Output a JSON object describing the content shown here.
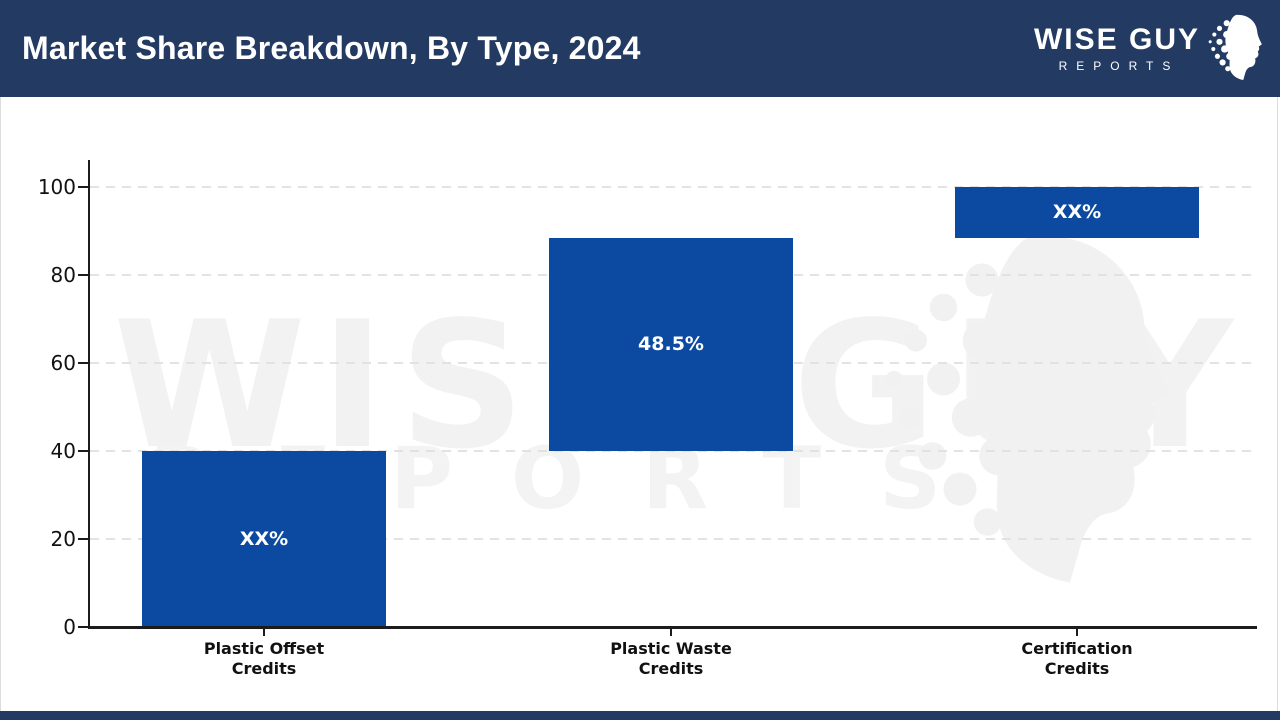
{
  "header": {
    "title": "Market Share Breakdown, By Type, 2024",
    "logo": {
      "line1": "WISE GUY",
      "line2": "REPORTS"
    }
  },
  "watermark": {
    "line1": "WISE GUY",
    "line2": "REPORTS"
  },
  "chart_data": {
    "type": "bar",
    "subtype": "waterfall",
    "title": "Market Share Breakdown, By Type, 2024",
    "categories": [
      [
        "Plastic Offset",
        "Credits"
      ],
      [
        "Plastic Waste",
        "Credits"
      ],
      [
        "Certification",
        "Credits"
      ]
    ],
    "bars": [
      {
        "category": "Plastic Offset Credits",
        "start": 0,
        "end": 40,
        "label": "XX%"
      },
      {
        "category": "Plastic Waste Credits",
        "start": 40,
        "end": 88.5,
        "label": "48.5%"
      },
      {
        "category": "Certification Credits",
        "start": 88.5,
        "end": 100,
        "label": "XX%"
      }
    ],
    "yticks": [
      0,
      20,
      40,
      60,
      80,
      100
    ],
    "ylim": [
      0,
      106
    ],
    "xlabel": "",
    "ylabel": "",
    "grid": "horizontal-dashed",
    "legend": "none",
    "bar_color": "#0b4aa0"
  },
  "colors": {
    "header_navy": "#233a63",
    "footer_navy": "#233a63",
    "bar_blue": "#0b4aa0",
    "grid_gray": "#e2e2e2",
    "axis_black": "#1c1c1c",
    "watermark_gray": "#f2f2f2"
  }
}
